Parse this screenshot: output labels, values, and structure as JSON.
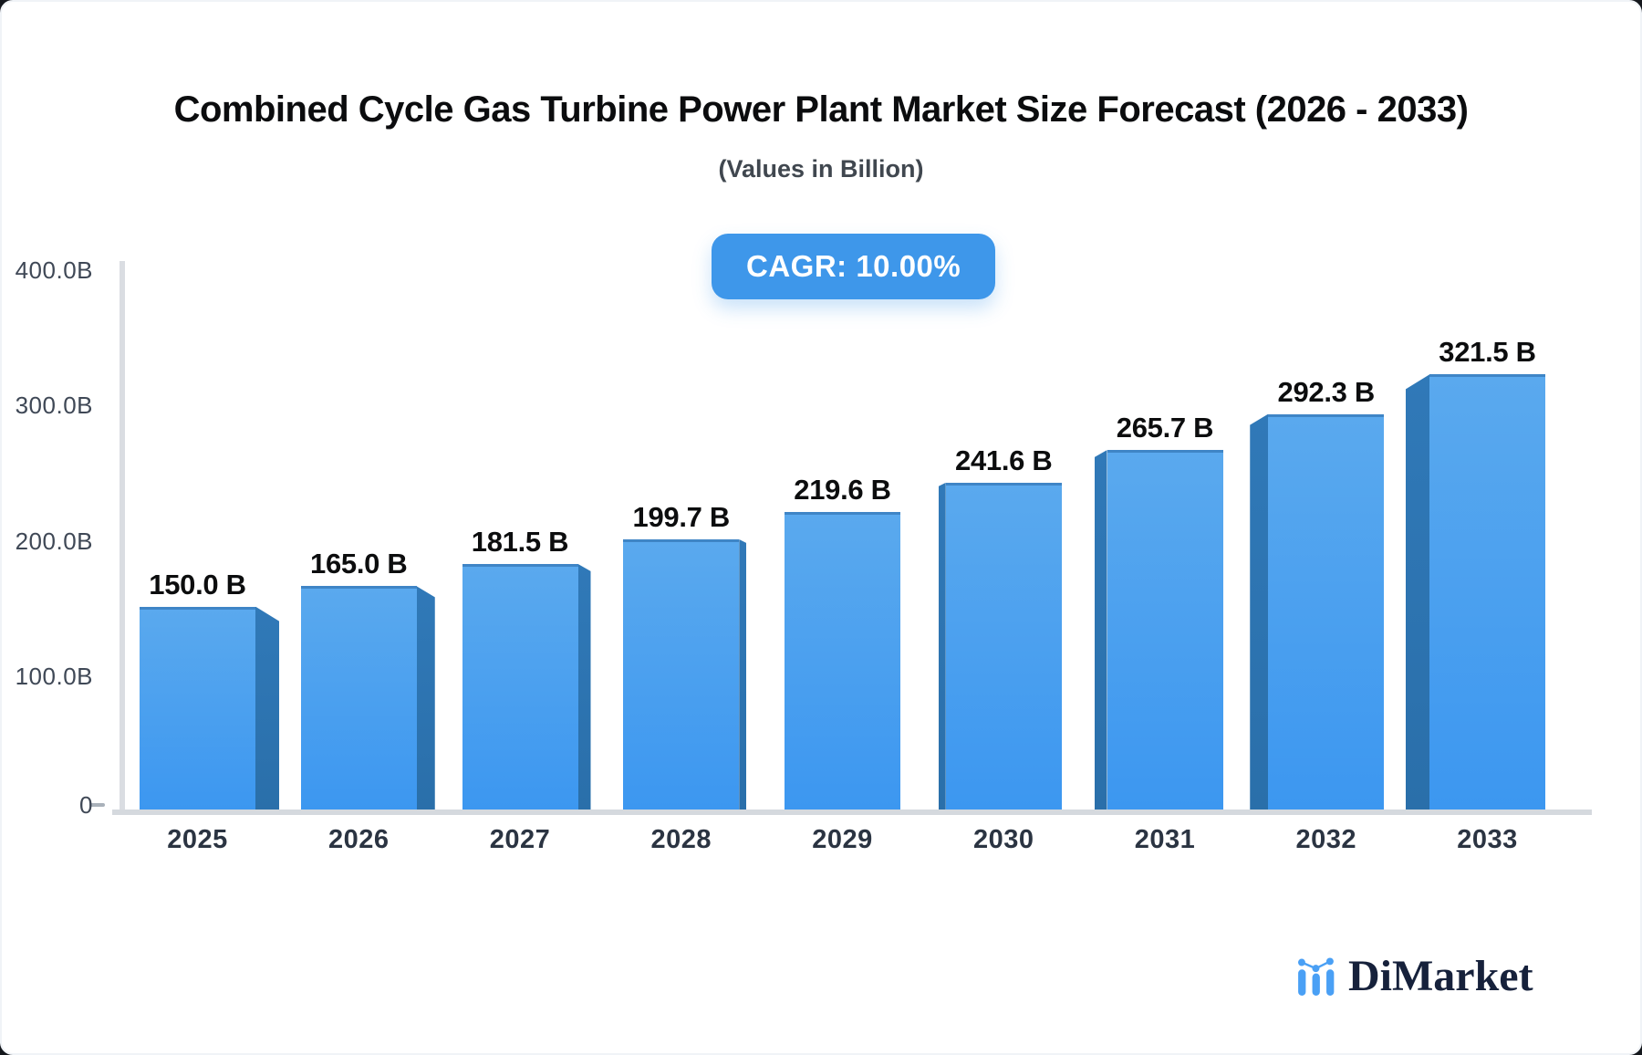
{
  "page": {
    "title": "Combined Cycle Gas Turbine Power Plant Market Size Forecast (2026 - 2033)",
    "subtitle": "(Values in Billion)",
    "cagr_label": "CAGR: 10.00%"
  },
  "chart_data": {
    "type": "bar",
    "title": "Combined Cycle Gas Turbine Power Plant Market Size Forecast (2026 - 2033)",
    "subtitle": "(Values in Billion)",
    "categories": [
      "2025",
      "2026",
      "2027",
      "2028",
      "2029",
      "2030",
      "2031",
      "2032",
      "2033"
    ],
    "values": [
      150.0,
      165.0,
      181.5,
      199.7,
      219.6,
      241.6,
      265.7,
      292.3,
      321.5
    ],
    "value_labels": [
      "150.0 B",
      "165.0 B",
      "181.5 B",
      "199.7 B",
      "219.6 B",
      "241.6 B",
      "265.7 B",
      "292.3 B",
      "321.5 B"
    ],
    "y_ticks": [
      "400.0B",
      "300.0B",
      "200.0B",
      "100.0B",
      "0"
    ],
    "y_tick_values": [
      400,
      300,
      200,
      100,
      0
    ],
    "ylim": [
      0,
      400
    ],
    "xlabel": "",
    "ylabel": "",
    "unit": "Billion",
    "grid": false,
    "legend": false,
    "colors": {
      "bar_front_top": "#5aa9ee",
      "bar_front_bottom": "#3c97f0",
      "bar_top_edge": "#3f85c6",
      "bar_side_top": "#3079b8",
      "bar_side_bottom": "#2a6faa",
      "axis": "#d8dbe0",
      "badge_background": "#3e97ea",
      "value_label": "#0c0d0e",
      "tick_label": "#3f4856"
    }
  },
  "branding": {
    "logo_text": "DiMarket",
    "logo_icon": "bar-chart-trend-icon",
    "logo_color": "#16213b",
    "logo_accent": "#4aa0f5"
  }
}
